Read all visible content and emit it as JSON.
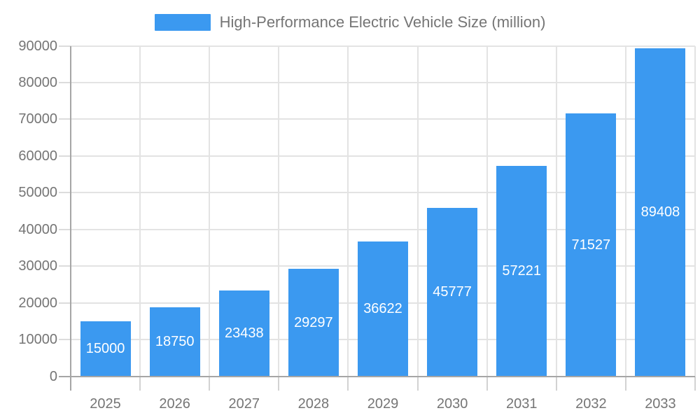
{
  "chart_data": {
    "type": "bar",
    "title": "High-Performance Electric Vehicle Size (million)",
    "legend_position": "top",
    "categories": [
      "2025",
      "2026",
      "2027",
      "2028",
      "2029",
      "2030",
      "2031",
      "2032",
      "2033"
    ],
    "series": [
      {
        "name": "High-Performance Electric Vehicle Size (million)",
        "values": [
          15000,
          18750,
          23438,
          29297,
          36622,
          45777,
          57221,
          71527,
          89408
        ]
      }
    ],
    "bar_value_labels": [
      "15000",
      "18750",
      "23438",
      "29297",
      "36622",
      "45777",
      "57221",
      "71527",
      "89408"
    ],
    "xlabel": "",
    "ylabel": "",
    "ylim": [
      0,
      90000
    ],
    "y_tick_labels": [
      "0",
      "10000",
      "20000",
      "30000",
      "40000",
      "50000",
      "60000",
      "70000",
      "80000",
      "90000"
    ],
    "grid": "on",
    "colors": {
      "bar": "#3B99F0",
      "bar_value_text": "#ffffff",
      "axis_text": "#757575",
      "legend_text": "#757575",
      "gridline": "#e3e3e3",
      "axis_line": "#a6a6a6",
      "background": "#ffffff"
    }
  }
}
